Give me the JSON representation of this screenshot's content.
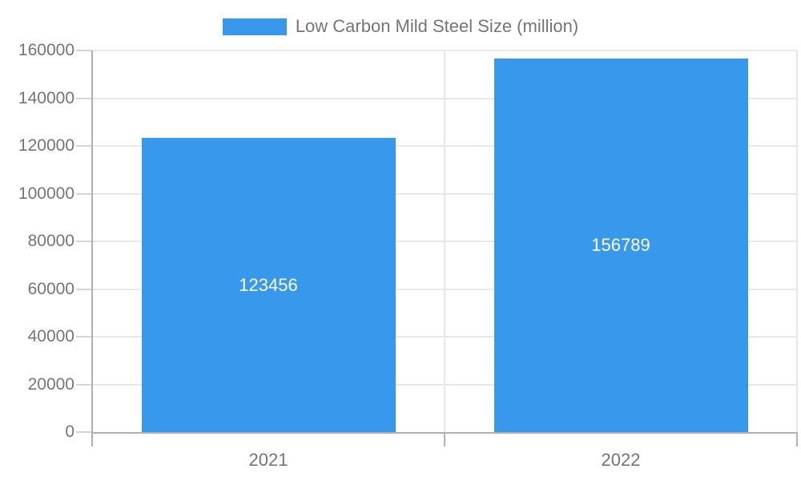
{
  "chart_data": {
    "type": "bar",
    "title": "",
    "xlabel": "",
    "ylabel": "",
    "categories": [
      "2021",
      "2022"
    ],
    "series": [
      {
        "name": "Low Carbon Mild Steel Size (million)",
        "values": [
          123456,
          156789
        ]
      }
    ],
    "values": [
      123456,
      156789
    ],
    "bar_labels": [
      "123456",
      "156789"
    ],
    "ylim": [
      0,
      160000
    ],
    "ytick_step": 20000,
    "ytick_labels": [
      "0",
      "20000",
      "40000",
      "60000",
      "80000",
      "100000",
      "120000",
      "140000",
      "160000"
    ],
    "grid": true,
    "legend_position": "top",
    "colors": {
      "bar": "#3898ec",
      "bar_label": "#ffffff",
      "axis_line": "#b0b0b0",
      "gridline": "#e8e8e8",
      "tick_mark": "#d6d6d6",
      "below_axis_tick": "#b3b3b3",
      "tick_text": "#757575",
      "legend_text": "#757575",
      "background": "#ffffff"
    }
  },
  "legend": {
    "label": "Low Carbon Mild Steel Size (million)"
  }
}
